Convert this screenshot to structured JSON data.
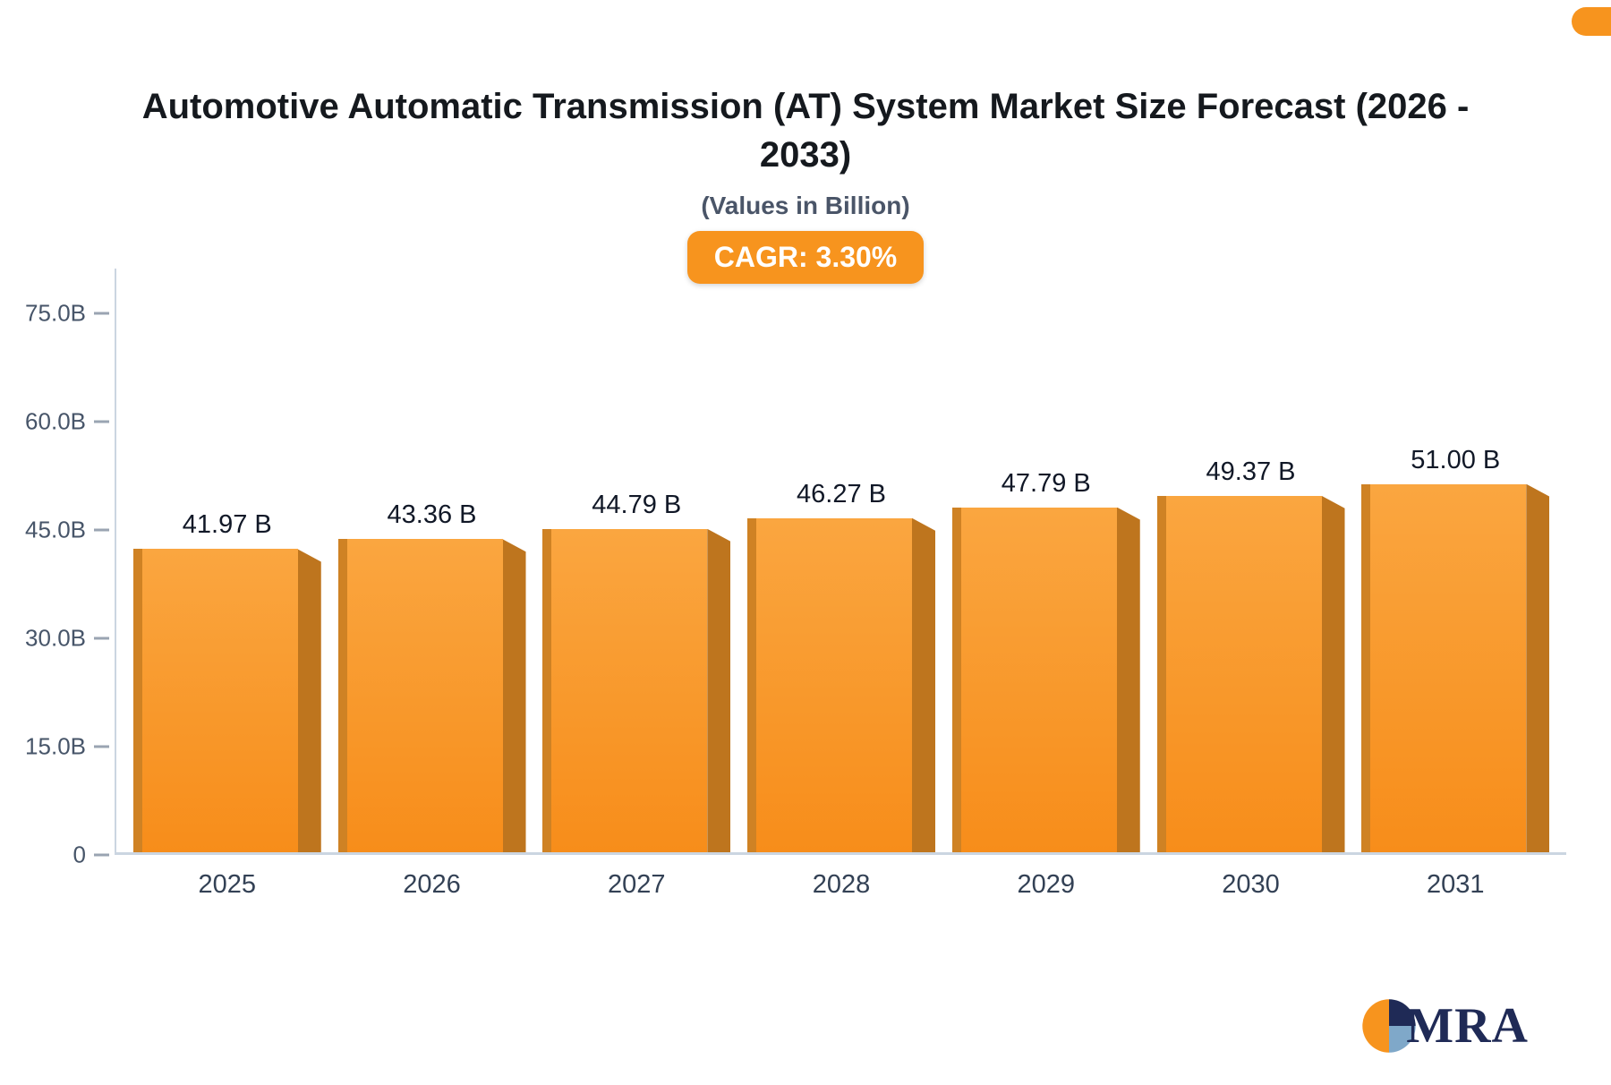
{
  "header": {
    "title": "Automotive Automatic Transmission (AT) System Market Size Forecast (2026 - 2033)",
    "subtitle": "(Values in Billion)",
    "cagr_badge": "CAGR: 3.30%"
  },
  "chart_data": {
    "type": "bar",
    "title": "Automotive Automatic Transmission (AT) System Market Size Forecast (2026 - 2033)",
    "subtitle": "(Values in Billion)",
    "cagr": "3.30%",
    "categories": [
      "2025",
      "2026",
      "2027",
      "2028",
      "2029",
      "2030",
      "2031"
    ],
    "values": [
      41.97,
      43.36,
      44.79,
      46.27,
      47.79,
      49.37,
      51.0
    ],
    "value_labels": [
      "41.97 B",
      "43.36 B",
      "44.79 B",
      "46.27 B",
      "47.79 B",
      "49.37 B",
      "51.00 B"
    ],
    "unit": "Billion",
    "ylim": [
      0,
      75
    ],
    "y_ticks": [
      {
        "value": 75,
        "label": "75.0B"
      },
      {
        "value": 60,
        "label": "60.0B"
      },
      {
        "value": 45,
        "label": "45.0B"
      },
      {
        "value": 30,
        "label": "30.0B"
      },
      {
        "value": 15,
        "label": "15.0B"
      },
      {
        "value": 0,
        "label": "0"
      }
    ],
    "grid": false,
    "legend": false,
    "bar_style": "3d-orange"
  },
  "logo": {
    "text": "MRA"
  },
  "colors": {
    "accent_orange": "#F7941E",
    "bar_top": "#FAA640",
    "bar_bottom": "#F78D1A",
    "bar_side": "#BE751E",
    "bar_edge": "#CF8224",
    "badge_text": "#FFFFFF",
    "axis_line": "#CBD5E1",
    "tick_text": "#475569",
    "title_text": "#15191E",
    "subtitle_text": "#4A5568",
    "logo_navy": "#1F2A56",
    "logo_steel": "#7FA8C9"
  }
}
